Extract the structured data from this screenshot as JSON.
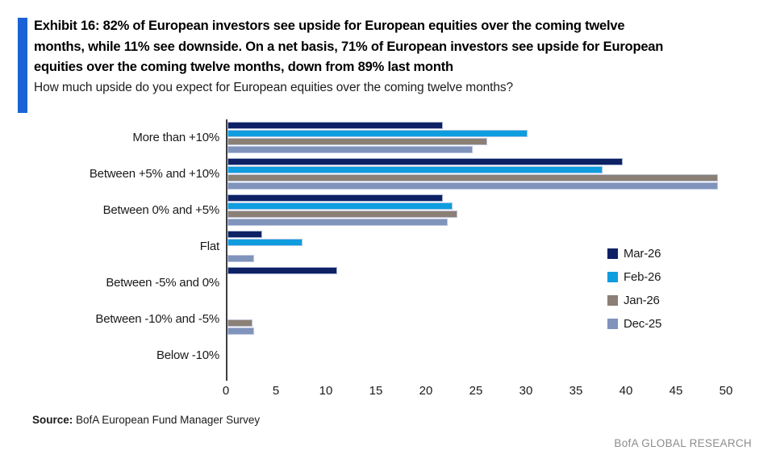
{
  "header": {
    "accent_color": "#1b62d6",
    "title_lines": [
      "Exhibit 16: 82% of European investors see upside for European equities over the coming twelve",
      "months, while 11% see downside. On a net basis, 71% of European investors see upside for European",
      "equities over the coming twelve months, down from 89% last month"
    ]
  },
  "chart_data": {
    "type": "bar",
    "orientation": "horizontal",
    "title": "How much upside do you expect for European equities over the coming twelve months?",
    "categories": [
      "More than +10%",
      "Between +5% and +10%",
      "Between 0% and +5%",
      "Flat",
      "Between -5% and 0%",
      "Between -10% and -5%",
      "Below -10%"
    ],
    "series": [
      {
        "name": "Mar-26",
        "color": "#0d2164",
        "values": [
          21.5,
          39.5,
          21.5,
          3.5,
          11,
          0,
          0
        ]
      },
      {
        "name": "Feb-26",
        "color": "#0f9ddf",
        "values": [
          30,
          37.5,
          22.5,
          7.5,
          0,
          0,
          0
        ]
      },
      {
        "name": "Jan-26",
        "color": "#8b8076",
        "values": [
          26,
          49,
          23,
          0,
          0,
          2.5,
          0
        ]
      },
      {
        "name": "Dec-25",
        "color": "#8093bb",
        "values": [
          24.5,
          49,
          22,
          2.7,
          0,
          2.7,
          0
        ]
      }
    ],
    "xlim": [
      0,
      50
    ],
    "x_ticks": [
      0,
      5,
      10,
      15,
      20,
      25,
      30,
      35,
      40,
      45,
      50
    ],
    "grid": false,
    "legend_position": "middle-right"
  },
  "footer": {
    "source_label": "Source:",
    "source_text": " BofA European Fund Manager Survey",
    "brand": "BofA GLOBAL RESEARCH"
  }
}
